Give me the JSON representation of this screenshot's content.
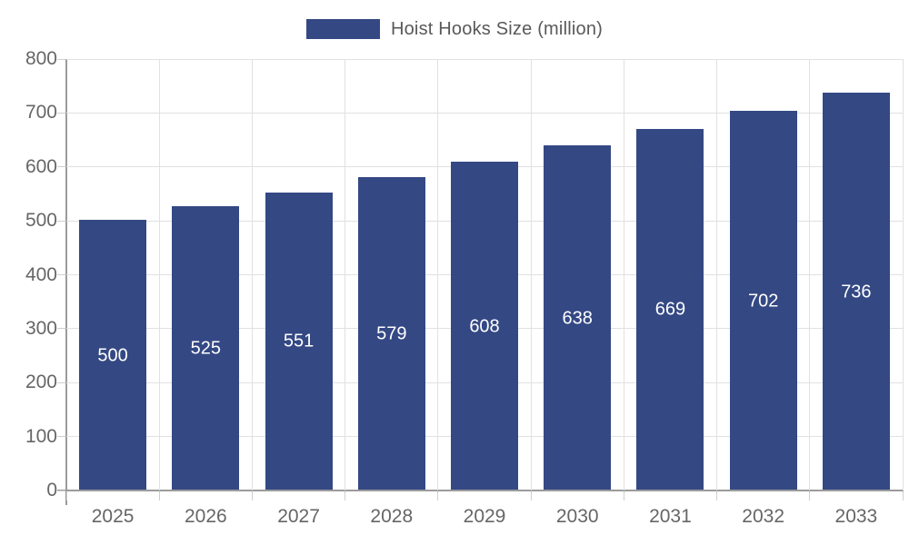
{
  "chart_data": {
    "type": "bar",
    "title": "",
    "legend": "Hoist Hooks Size (million)",
    "legend_position": "top",
    "categories": [
      "2025",
      "2026",
      "2027",
      "2028",
      "2029",
      "2030",
      "2031",
      "2032",
      "2033"
    ],
    "values": [
      500,
      525,
      551,
      579,
      608,
      638,
      669,
      702,
      736
    ],
    "value_labels": [
      "500",
      "525",
      "551",
      "579",
      "608",
      "638",
      "669",
      "702",
      "736"
    ],
    "xlabel": "",
    "ylabel": "",
    "ylim": [
      0,
      800
    ],
    "yticks": [
      0,
      100,
      200,
      300,
      400,
      500,
      600,
      700,
      800
    ],
    "grid": "both",
    "colors": {
      "bar": "#344884",
      "grid": "#e1e1e1",
      "axis": "#9b9b9b",
      "tick": "#cfcfcf",
      "axis_text": "#666666",
      "legend_text": "#595959",
      "value_text": "#ffffff",
      "background": "#ffffff"
    }
  }
}
